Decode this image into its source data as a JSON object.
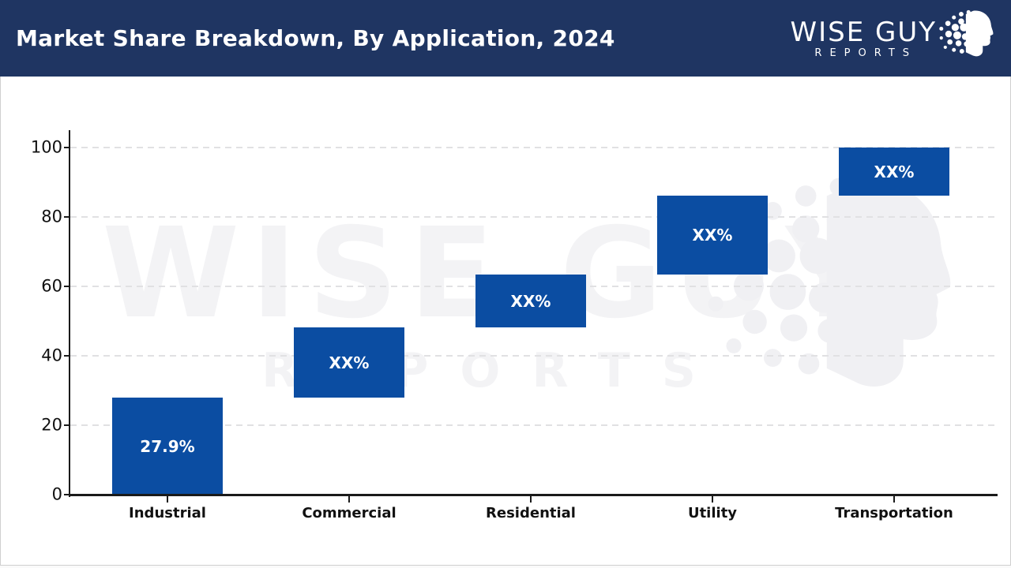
{
  "header": {
    "title": "Market Share Breakdown, By Application, 2024",
    "logo": {
      "line1": "WISE GUY",
      "line2": "REPORTS"
    }
  },
  "watermark": {
    "line1": "WISE GUY",
    "line2": "REPORTS"
  },
  "colors": {
    "header_bg": "#1f3562",
    "bar": "#0b4da2",
    "bar_label": "#ffffff",
    "axis": "#1a1a1a",
    "gridline": "#e1e1e3",
    "watermark": "#f3f3f5",
    "page_bg": "#ffffff"
  },
  "chart_data": {
    "type": "bar",
    "subtype": "waterfall",
    "title": "Market Share Breakdown, By Application, 2024",
    "categories": [
      "Industrial",
      "Commercial",
      "Residential",
      "Utility",
      "Transportation"
    ],
    "segments": [
      {
        "category": "Industrial",
        "from": 0,
        "to": 27.9,
        "label": "27.9%"
      },
      {
        "category": "Commercial",
        "from": 27.9,
        "to": 48.1,
        "label": "XX%"
      },
      {
        "category": "Residential",
        "from": 48.1,
        "to": 63.4,
        "label": "XX%"
      },
      {
        "category": "Utility",
        "from": 63.4,
        "to": 86.1,
        "label": "XX%"
      },
      {
        "category": "Transportation",
        "from": 86.1,
        "to": 100,
        "label": "XX%"
      }
    ],
    "yticks": [
      0,
      20,
      40,
      60,
      80,
      100
    ],
    "ylim": [
      0,
      105
    ],
    "xlabel": "",
    "ylabel": "",
    "grid": "horizontal-dashed",
    "legend": "none"
  }
}
